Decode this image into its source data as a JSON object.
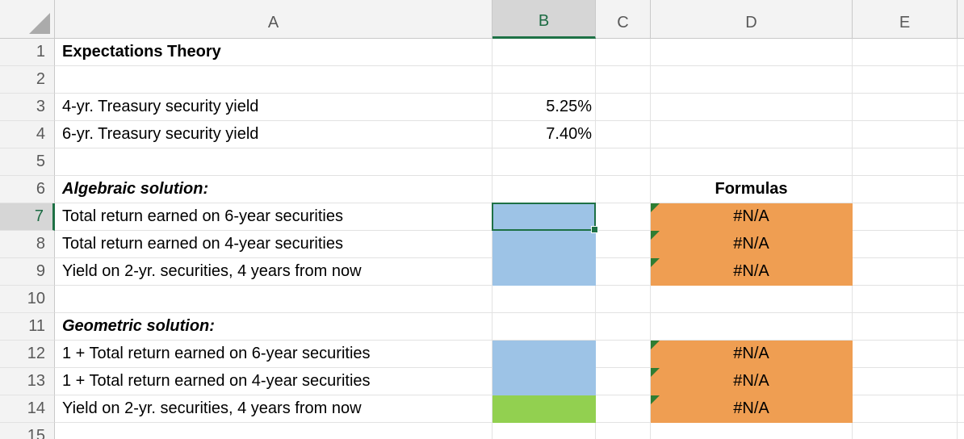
{
  "sheet": {
    "columns": [
      "A",
      "B",
      "C",
      "D",
      "E"
    ],
    "selection": {
      "active_cell": "B7",
      "column": "B",
      "row": "7"
    },
    "colors": {
      "input_fill_blue": "#9DC3E6",
      "answer_fill_green": "#92D050",
      "formula_fill_orange": "#EF9E52",
      "selection_accent_green": "#1E7145",
      "error_triangle_green": "#2E7D32"
    },
    "icons": {
      "select_all_triangle": "◢",
      "formula_error_triangle": "◤",
      "fill_handle": "■"
    },
    "rows": [
      {
        "num": "1",
        "a": "Expectations Theory",
        "b": "",
        "d": ""
      },
      {
        "num": "2",
        "a": "",
        "b": "",
        "d": ""
      },
      {
        "num": "3",
        "a": "4-yr. Treasury security yield",
        "b": "5.25%",
        "d": ""
      },
      {
        "num": "4",
        "a": "6-yr. Treasury security yield",
        "b": "7.40%",
        "d": ""
      },
      {
        "num": "5",
        "a": "",
        "b": "",
        "d": ""
      },
      {
        "num": "6",
        "a": "Algebraic solution:",
        "b": "",
        "d": "Formulas"
      },
      {
        "num": "7",
        "a": "Total return earned on 6-year securities",
        "b": "",
        "d": "#N/A"
      },
      {
        "num": "8",
        "a": "Total return earned on 4-year securities",
        "b": "",
        "d": "#N/A"
      },
      {
        "num": "9",
        "a": "Yield on 2-yr. securities, 4 years from now",
        "b": "",
        "d": "#N/A"
      },
      {
        "num": "10",
        "a": "",
        "b": "",
        "d": ""
      },
      {
        "num": "11",
        "a": "Geometric solution:",
        "b": "",
        "d": ""
      },
      {
        "num": "12",
        "a": "1 + Total return earned on 6-year securities",
        "b": "",
        "d": "#N/A"
      },
      {
        "num": "13",
        "a": "1 + Total return earned on 4-year securities",
        "b": "",
        "d": "#N/A"
      },
      {
        "num": "14",
        "a": "Yield on 2-yr. securities, 4 years from now",
        "b": "",
        "d": "#N/A"
      },
      {
        "num": "15",
        "a": "",
        "b": "",
        "d": ""
      }
    ]
  }
}
